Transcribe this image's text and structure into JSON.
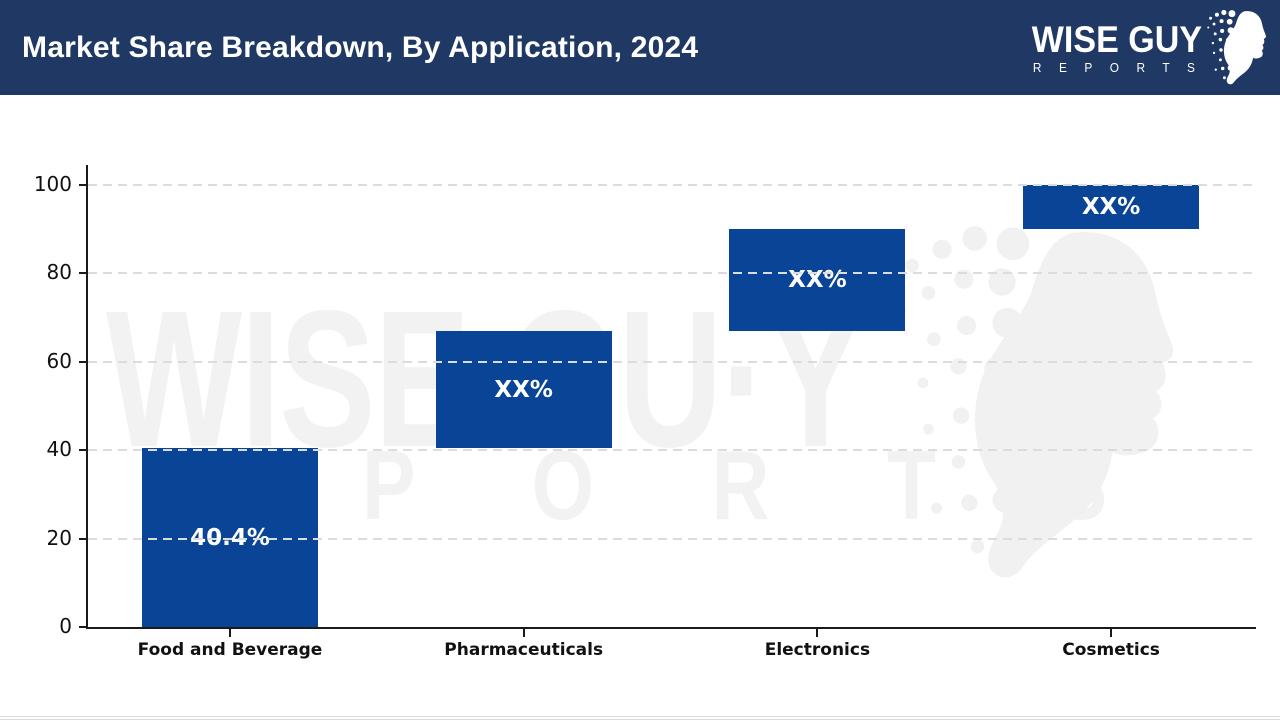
{
  "header": {
    "title": "Market Share Breakdown, By Application, 2024",
    "brand_name": "WISE GUY",
    "brand_sub": "R E P O R T S",
    "bg_color": "#1f3864"
  },
  "watermark": {
    "line1": "WISE GU·Y",
    "line2": "P O R T S"
  },
  "chart_data": {
    "type": "bar",
    "variant": "floating-segment-waterfall",
    "title": "Market Share Breakdown, By Application, 2024",
    "categories": [
      "Food and Beverage",
      "Pharmaceuticals",
      "Electronics",
      "Cosmetics"
    ],
    "segments": [
      {
        "category": "Food and Beverage",
        "start": 0,
        "end": 40.4,
        "label": "40.4%"
      },
      {
        "category": "Pharmaceuticals",
        "start": 40.4,
        "end": 67,
        "label": "XX%"
      },
      {
        "category": "Electronics",
        "start": 67,
        "end": 90,
        "label": "XX%"
      },
      {
        "category": "Cosmetics",
        "start": 90,
        "end": 100,
        "label": "XX%"
      }
    ],
    "yticks": [
      0,
      20,
      40,
      60,
      80,
      100
    ],
    "ylim": [
      0,
      104.5
    ],
    "xlabel": "",
    "ylabel": "",
    "grid": "horizontal-dashed",
    "grid_on_top": true,
    "legend": "none",
    "bar_color": "#0a4496",
    "bar_label_color": "#ffffff",
    "axis_color": "#1a1a1a"
  }
}
